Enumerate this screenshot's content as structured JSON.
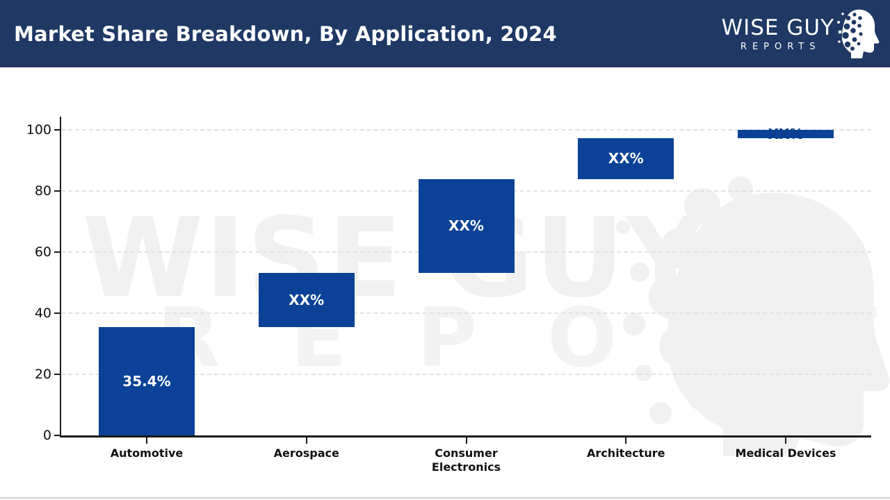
{
  "header": {
    "title": "Market Share Breakdown, By Application, 2024",
    "bg_color": "#1f3864",
    "logo": {
      "line1": "WISE GUY",
      "line2": "REPORTS"
    }
  },
  "watermark": {
    "line1": "WISE GUY",
    "line2": "R E P O R T S"
  },
  "chart_data": {
    "type": "bar",
    "subtype": "waterfall",
    "title": "Market Share Breakdown, By Application, 2024",
    "categories": [
      "Automotive",
      "Aerospace",
      "Consumer Electronics",
      "Architecture",
      "Medical Devices"
    ],
    "segments": [
      {
        "category": "Automotive",
        "start": 0,
        "end": 35.4,
        "label": "35.4%"
      },
      {
        "category": "Aerospace",
        "start": 35.4,
        "end": 53.2,
        "label": "XX%"
      },
      {
        "category": "Consumer Electronics",
        "start": 53.2,
        "end": 83.9,
        "label": "XX%"
      },
      {
        "category": "Architecture",
        "start": 83.9,
        "end": 97.3,
        "label": "XX%"
      },
      {
        "category": "Medical Devices",
        "start": 97.3,
        "end": 100,
        "label": "XX%"
      }
    ],
    "y_ticks": [
      0,
      20,
      40,
      60,
      80,
      100
    ],
    "ylim": [
      0,
      105
    ],
    "xlabel": "",
    "ylabel": "",
    "grid": "dashed-horizontal",
    "legend": "none",
    "bar_color": "#0b4297",
    "bar_label_color": "#ffffff",
    "thin_bar_label_color": "#0b3d8c",
    "axis_color": "#1a1a1a",
    "grid_color": "#e2e2e2",
    "tick_label_color": "#111111"
  }
}
